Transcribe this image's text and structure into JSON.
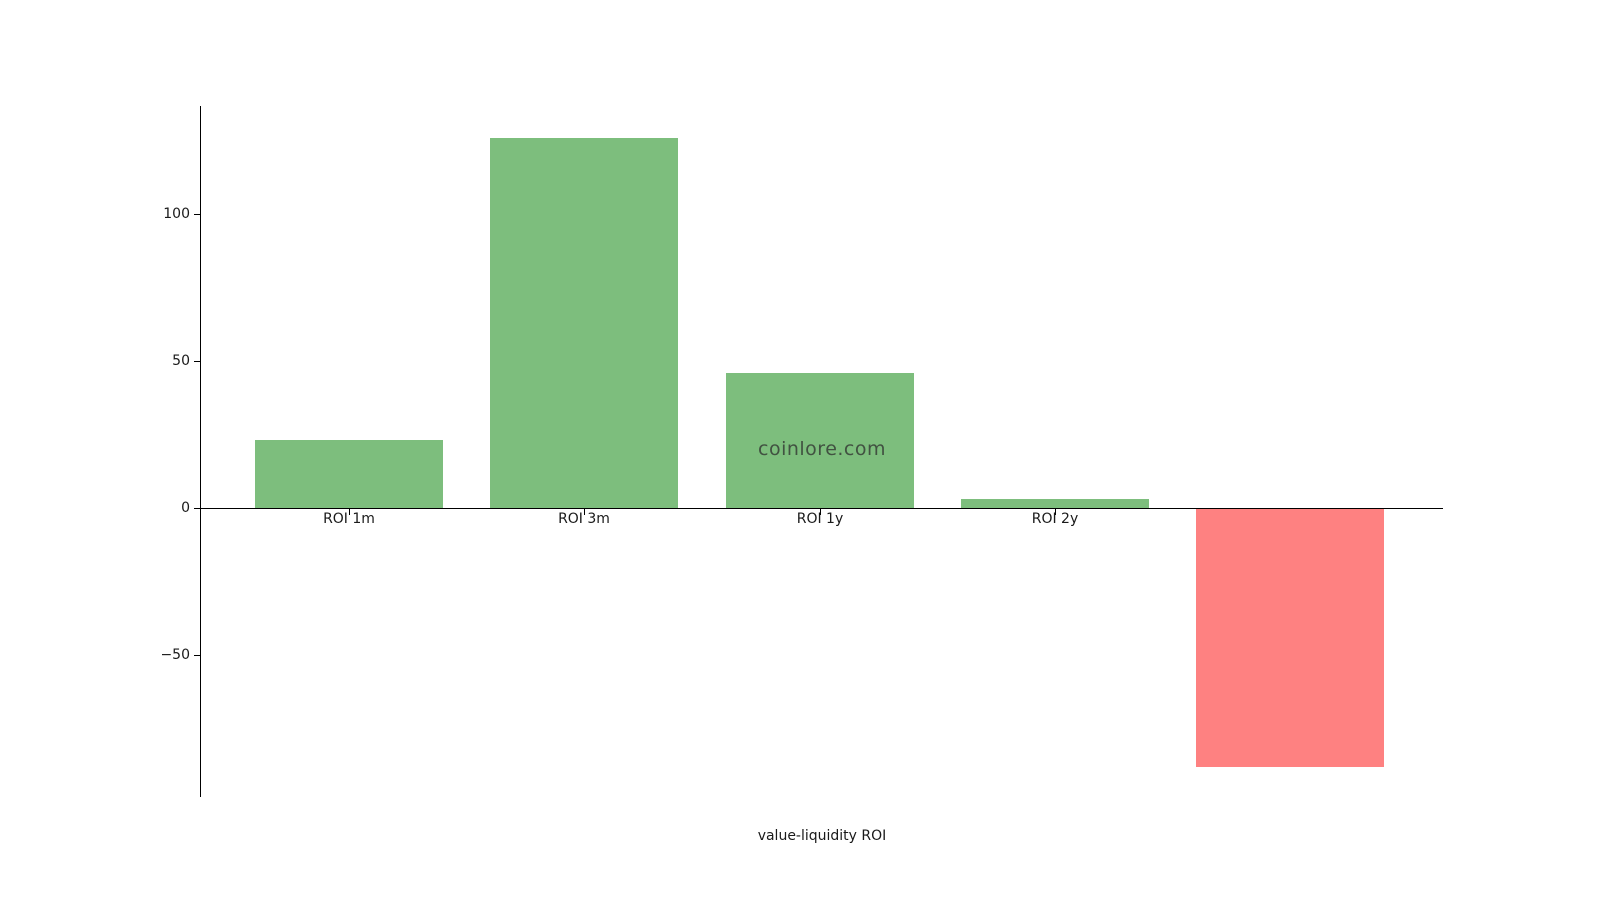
{
  "figure": {
    "background": "#ffffff"
  },
  "chart_data": {
    "type": "bar",
    "title": "",
    "xlabel": "value-liquidity ROI",
    "ylabel": "",
    "categories": [
      "ROI 1m",
      "ROI 3m",
      "ROI 1y",
      "ROI 2y",
      ""
    ],
    "values": [
      23,
      126,
      46,
      3,
      -88
    ],
    "bar_colors": [
      "#7dbe7d",
      "#7dbe7d",
      "#7dbe7d",
      "#7dbe7d",
      "#fe8181"
    ],
    "positive_color": "#7dbe7d",
    "negative_color": "#fe8181",
    "yticks": [
      100,
      50,
      0,
      -50
    ],
    "ylim": [
      -98.5,
      136.8
    ],
    "xlim": [
      -0.63,
      4.65
    ],
    "bar_width_fraction": 0.8,
    "grid": false,
    "legend": null,
    "axis_color": "#000000",
    "watermark": "coinlore.com"
  }
}
